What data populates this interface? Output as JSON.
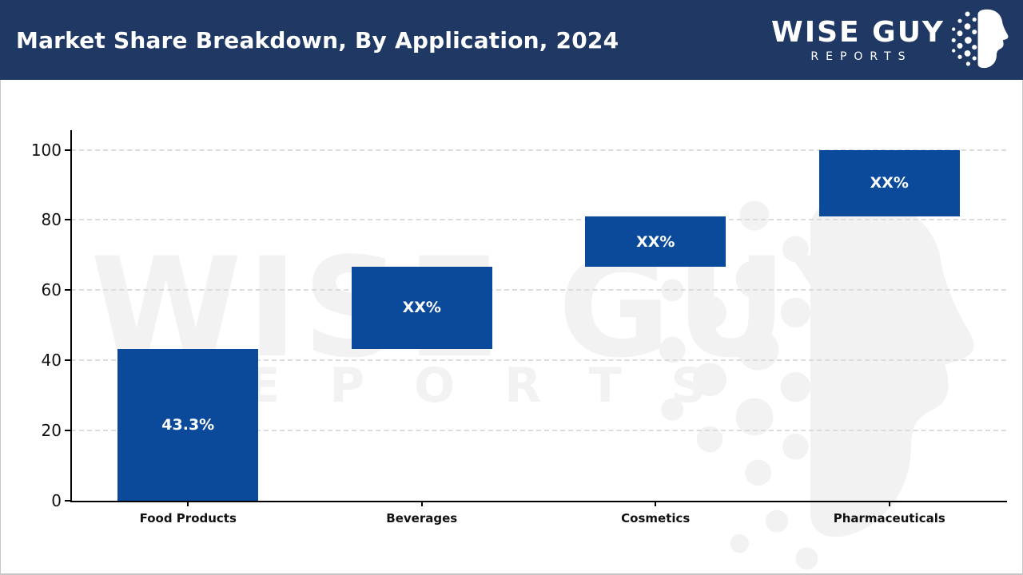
{
  "header": {
    "title": "Market Share Breakdown, By Application, 2024",
    "logo": {
      "wordmark": "WISE GUY",
      "subtext": "REPORTS"
    }
  },
  "watermark": {
    "line1": "WISE GUY",
    "line2": "REPORTS"
  },
  "colors": {
    "header_bg": "#1f3864",
    "bar_blue": "#0b4a9b",
    "grid_gray": "#dcdcdc",
    "axis_black": "#000000",
    "watermark_gray": "#f2f2f2",
    "border_gray": "#c9c9c9",
    "value_label_white": "#ffffff"
  },
  "chart_data": {
    "type": "bar",
    "subtype": "waterfall",
    "title": "Market Share Breakdown, By Application, 2024",
    "xlabel": "",
    "ylabel": "",
    "categories": [
      "Food Products",
      "Beverages",
      "Cosmetics",
      "Pharmaceuticals"
    ],
    "segments": [
      {
        "category": "Food Products",
        "start": 0,
        "end": 43.3,
        "label": "43.3%"
      },
      {
        "category": "Beverages",
        "start": 43.3,
        "end": 66.6,
        "label": "XX%"
      },
      {
        "category": "Cosmetics",
        "start": 66.6,
        "end": 81.0,
        "label": "XX%"
      },
      {
        "category": "Pharmaceuticals",
        "start": 81.0,
        "end": 100.0,
        "label": "XX%"
      }
    ],
    "yticks": [
      0,
      20,
      40,
      60,
      80,
      100
    ],
    "ylim": [
      0,
      105
    ],
    "grid": "horizontal-dashed",
    "legend": "none",
    "bar_color": "#0b4a9b"
  }
}
